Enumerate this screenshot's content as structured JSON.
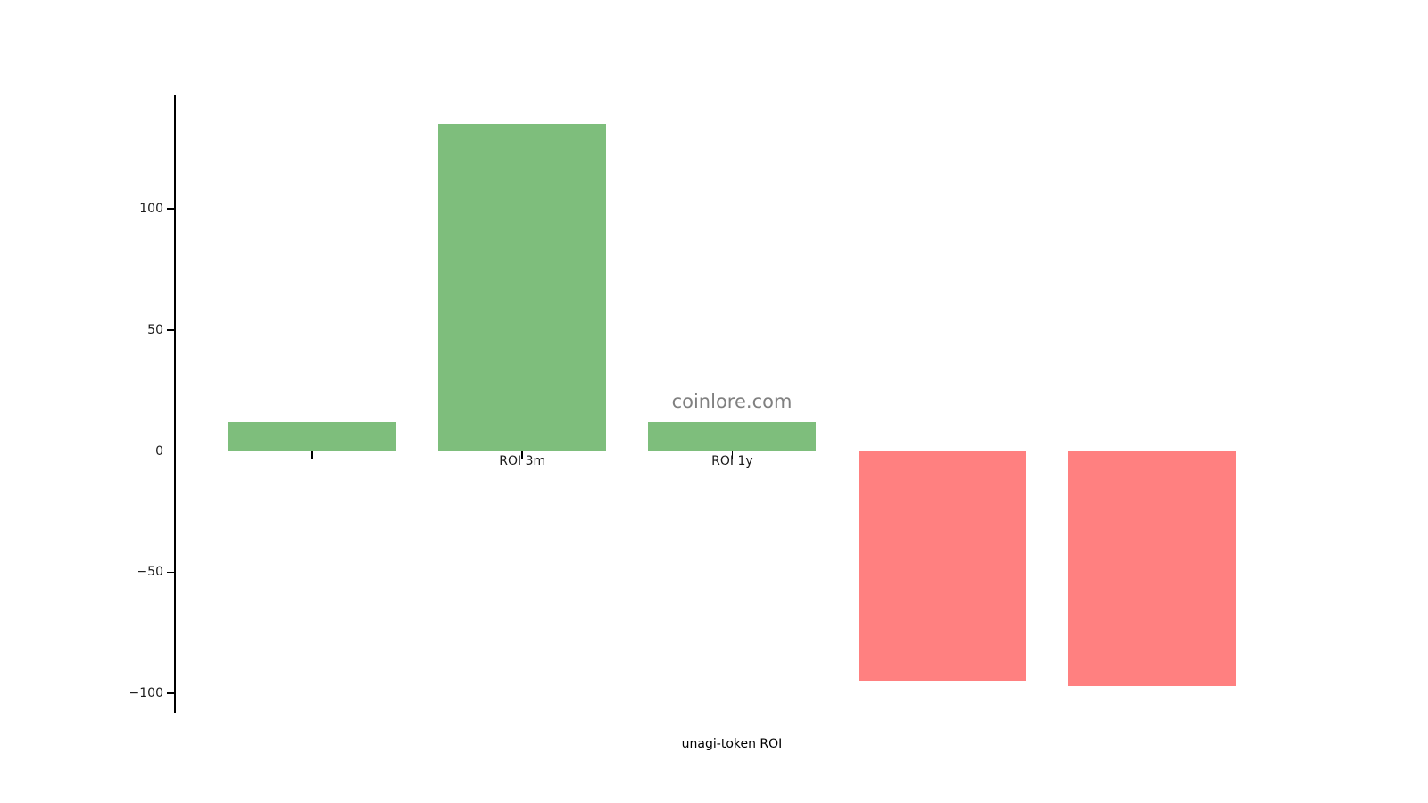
{
  "watermark": "coinlore.com",
  "chart_data": {
    "type": "bar",
    "title": "unagi-token ROI",
    "categories": [
      "",
      "ROI 3m",
      "ROI 1y",
      "",
      ""
    ],
    "values": [
      12,
      135,
      12,
      -95,
      -97
    ],
    "xlabel": "",
    "ylabel": "",
    "yticks": [
      -100,
      -50,
      0,
      50,
      100
    ],
    "ylim": [
      -108,
      147
    ],
    "grid": false,
    "legend": "none",
    "colors": {
      "positive": "#7ebe7c",
      "negative": "#ff8080",
      "axis": "#000000",
      "watermark_text": "#808080"
    }
  }
}
